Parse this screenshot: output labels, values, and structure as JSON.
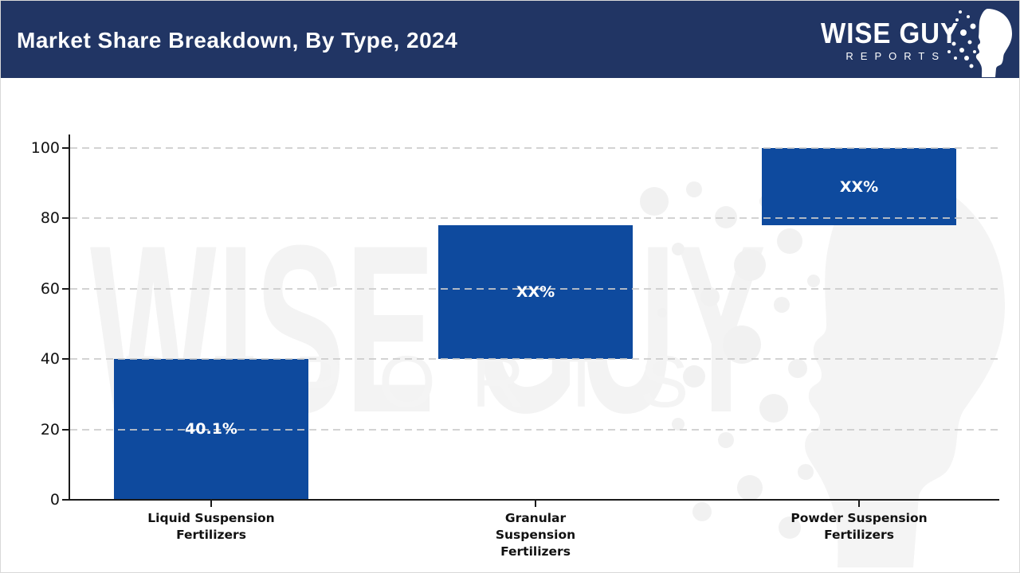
{
  "header": {
    "title": "Market Share Breakdown, By Type, 2024",
    "logo_line1": "WISE GUY",
    "logo_line2": "REPORTS"
  },
  "watermark": {
    "big_word": "WISE GUY",
    "second_row": "REPORTS"
  },
  "colors": {
    "header_bg": "#213564",
    "bar": "#0e4a9e",
    "bar_label_text": "#ffffff",
    "axis": "#1a1a1a",
    "gridline": "#d0d0d0",
    "watermark": "#f3f3f3"
  },
  "chart_data": {
    "type": "bar",
    "subtype": "waterfall",
    "title": "Market Share Breakdown, By Type, 2024",
    "categories": [
      "Liquid Suspension Fertilizers",
      "Granular Suspension Fertilizers",
      "Powder Suspension Fertilizers"
    ],
    "category_lines": [
      [
        "Liquid Suspension",
        "Fertilizers"
      ],
      [
        "Granular",
        "Suspension",
        "Fertilizers"
      ],
      [
        "Powder Suspension",
        "Fertilizers"
      ]
    ],
    "segments": [
      {
        "category": "Liquid Suspension Fertilizers",
        "start": 0,
        "end": 40.1,
        "label": "40.1%"
      },
      {
        "category": "Granular Suspension Fertilizers",
        "start": 40,
        "end": 78,
        "label": "XX%"
      },
      {
        "category": "Powder Suspension Fertilizers",
        "start": 78,
        "end": 100,
        "label": "XX%"
      }
    ],
    "y_ticks": [
      0,
      20,
      40,
      60,
      80,
      100
    ],
    "ylim": [
      0,
      100
    ],
    "xlabel": "",
    "ylabel": "",
    "grid": "horizontal-dashed",
    "legend": "none"
  }
}
